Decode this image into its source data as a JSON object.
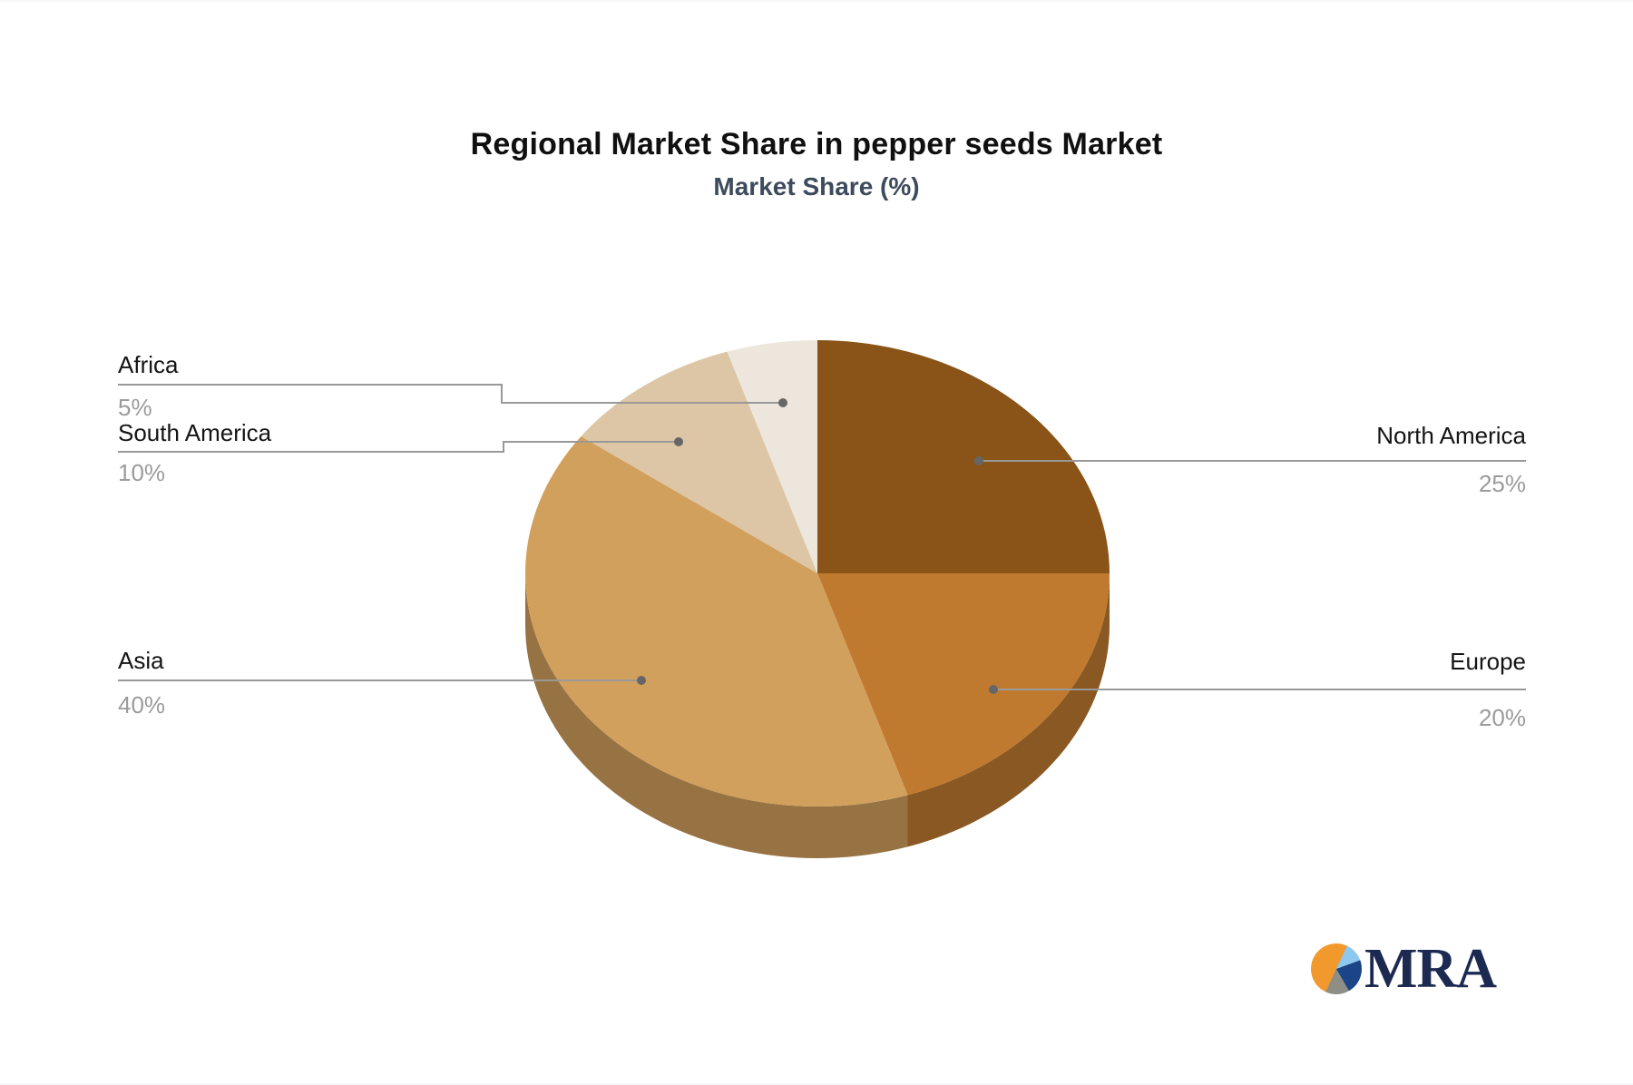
{
  "title": "Regional Market Share in pepper seeds Market",
  "subtitle": "Market Share (%)",
  "chart_data": {
    "type": "pie",
    "style": "3d",
    "title": "Regional Market Share in pepper seeds Market",
    "subtitle": "Market Share (%)",
    "unit": "%",
    "start_angle_deg": 0,
    "direction": "clockwise",
    "categories": [
      "North America",
      "Europe",
      "Asia",
      "South America",
      "Africa"
    ],
    "values": [
      25,
      20,
      40,
      10,
      5
    ],
    "labels": [
      "25%",
      "20%",
      "40%",
      "10%",
      "5%"
    ],
    "colors": [
      "#8A5418",
      "#C07A2F",
      "#D2A05D",
      "#DCC6A5",
      "#EDE6DC"
    ],
    "legend_position": "none",
    "grid": false,
    "leader_line_color": "#999999",
    "leader_dot_color": "#666666"
  },
  "logo": {
    "text": "MRA",
    "colors": {
      "orange": "#F2992E",
      "lightblue": "#8DC8EE",
      "navy": "#1C4587",
      "gray": "#8E8E86"
    }
  }
}
